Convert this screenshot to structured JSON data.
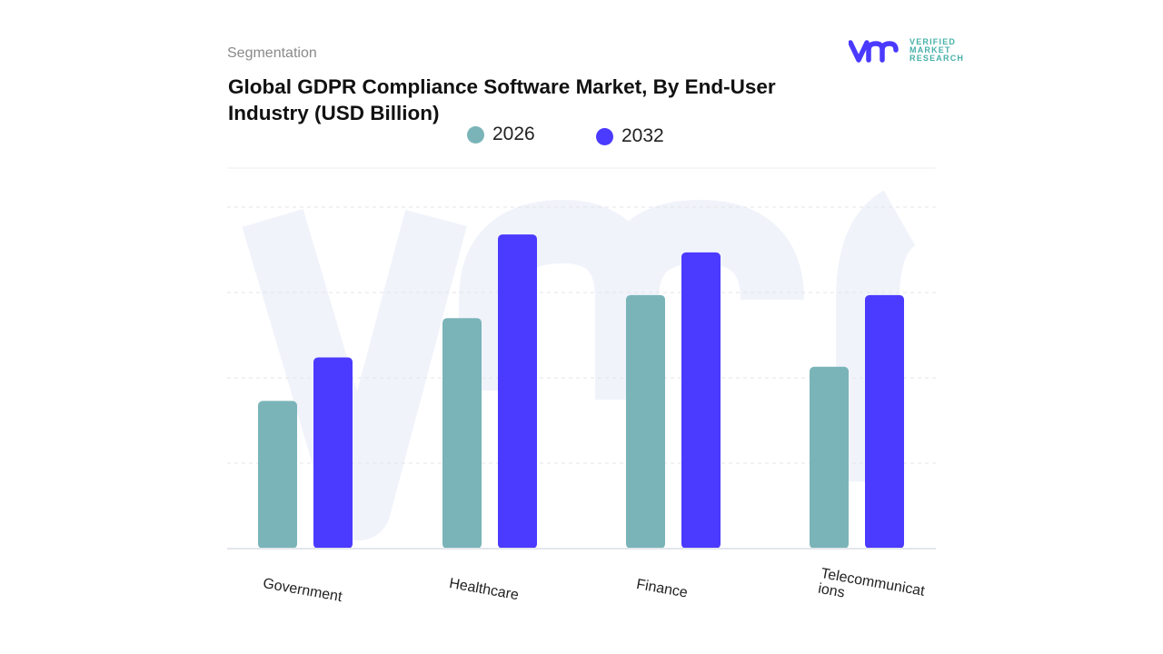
{
  "header": {
    "segment_label": "Segmentation",
    "title": "Global GDPR Compliance Software Market, By End-User Industry (USD Billion)"
  },
  "logo": {
    "lines": [
      "VERIFIED",
      "MARKET",
      "RESEARCH"
    ],
    "mark": "vmr",
    "color": "#4a3aff"
  },
  "chart_data": {
    "type": "bar",
    "title": "Global GDPR Compliance Software Market, By End-User Industry (USD Billion)",
    "categories": [
      "Government",
      "Healthcare",
      "Finance",
      "Telecommunicat ions"
    ],
    "series": [
      {
        "name": "2026",
        "color": "#7ab4b8",
        "values": [
          1.73,
          2.7,
          2.97,
          2.13
        ]
      },
      {
        "name": "2032",
        "color": "#4b3aff",
        "values": [
          2.24,
          3.68,
          3.47,
          2.97
        ]
      }
    ],
    "ylim": [
      0,
      4
    ],
    "y_ticks_visible": false,
    "grid": true,
    "legend_position": "top"
  }
}
